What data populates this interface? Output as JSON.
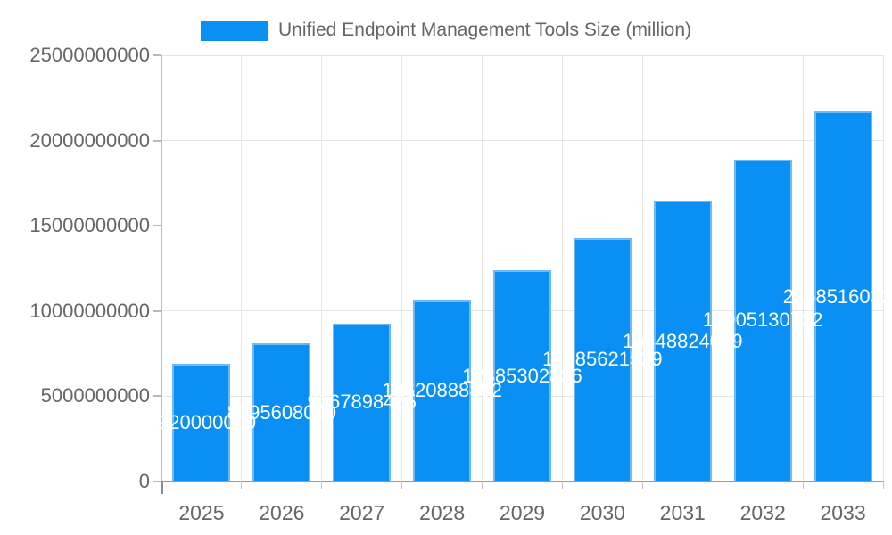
{
  "legend": {
    "label": "Unified Endpoint Management Tools Size (million)"
  },
  "colors": {
    "bar": "#0a90f5",
    "bar_border": "#6fb9f8",
    "axis_text": "#666666",
    "gridline": "#e5e5e5",
    "zero_line": "#9a9a9a",
    "bar_label_text": "#ffffff"
  },
  "chart_data": {
    "type": "bar",
    "title": "Unified Endpoint Management Tools Size (million)",
    "legend_position": "top",
    "grid": true,
    "xlabel": "",
    "ylabel": "",
    "categories": [
      "2025",
      "2026",
      "2027",
      "2028",
      "2029",
      "2030",
      "2031",
      "2032",
      "2033"
    ],
    "series": [
      {
        "name": "Unified Endpoint Management Tools Size (million)",
        "values": [
          6920000000,
          8095608000,
          9267898465,
          10620888352,
          12385302836,
          14285621539,
          16448824019,
          18905130722,
          21685160322
        ]
      }
    ],
    "bar_labels": [
      "6920000000",
      "8095608000",
      "9267898465",
      "10620888352",
      "12385302836",
      "14285621539",
      "16448824019",
      "18905130722",
      "21685160322"
    ],
    "y_ticks": [
      "0",
      "5000000000",
      "10000000000",
      "15000000000",
      "20000000000",
      "25000000000"
    ],
    "ylim": [
      0,
      25000000000
    ]
  }
}
